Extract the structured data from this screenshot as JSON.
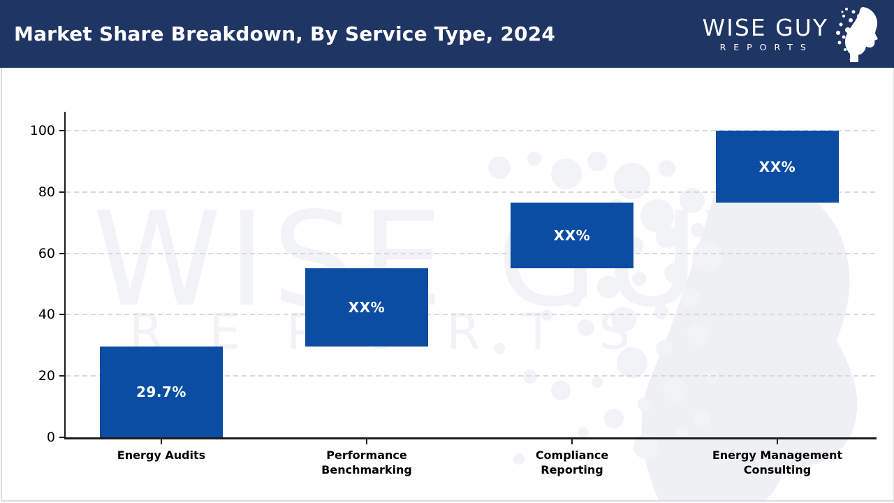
{
  "header": {
    "title": "Market Share Breakdown, By Service Type, 2024",
    "logo": {
      "name_line": "WISE GUY",
      "sub_line": "REPORTS"
    }
  },
  "watermark": {
    "name_line": "WISE GUY",
    "sub_line": "REPORTS"
  },
  "chart_data": {
    "type": "bar",
    "variant": "waterfall",
    "title": "Market Share Breakdown, By Service Type, 2024",
    "categories": [
      "Energy Audits",
      "Performance\nBenchmarking",
      "Compliance\nReporting",
      "Energy Management\nConsulting"
    ],
    "segments": [
      {
        "category": "Energy Audits",
        "label": "29.7%",
        "start": 0,
        "end": 29.7
      },
      {
        "category": "Performance Benchmarking",
        "label": "XX%",
        "start": 29.7,
        "end": 55.1
      },
      {
        "category": "Compliance Reporting",
        "label": "XX%",
        "start": 55.1,
        "end": 76.5
      },
      {
        "category": "Energy Management Consulting",
        "label": "XX%",
        "start": 76.5,
        "end": 100
      }
    ],
    "values_masked_note": "segment sizes",
    "values": [
      29.7,
      25.4,
      21.4,
      23.5
    ],
    "yticks": [
      0,
      20,
      40,
      60,
      80,
      100
    ],
    "ylim": [
      0,
      106
    ],
    "xlabel": "",
    "ylabel": "",
    "grid": "horizontal-dashed",
    "legend": "none",
    "colors": {
      "bar": "#0b4da2",
      "bar_label": "#ffffff",
      "axis": "#1c1c1c",
      "gridline": "#d9d9d9",
      "header_bg": "#1f3563",
      "tick_label": "#000000",
      "watermark": "#f2f3f6"
    }
  }
}
